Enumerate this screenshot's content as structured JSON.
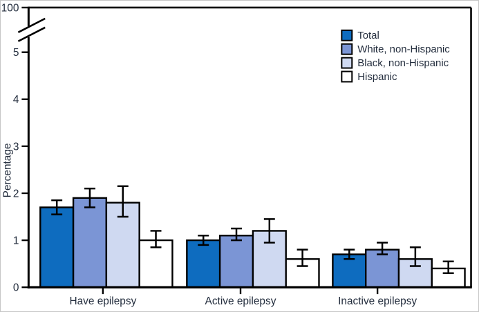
{
  "figure": {
    "background": "#ffffff",
    "frame_color": "#c6c6c6",
    "text_color": "#242e3e",
    "axis_color": "#000000"
  },
  "chart_data": {
    "type": "bar",
    "title": "",
    "xlabel": "",
    "ylabel": "Percentage",
    "ylim": [
      0,
      5
    ],
    "grid": false,
    "legend_position": "top-right",
    "error_bars": true,
    "y_ticks": [
      "0",
      "1",
      "2",
      "3",
      "4",
      "5"
    ],
    "y_axis_break": {
      "enabled": true,
      "top_tick_label": "100"
    },
    "categories": [
      "Have epilepsy",
      "Active epilepsy",
      "Inactive epilepsy"
    ],
    "series": [
      {
        "name": "Total",
        "color": "#0e6cbf",
        "values": [
          1.7,
          1.0,
          0.7
        ],
        "ci_low": [
          1.55,
          0.9,
          0.6
        ],
        "ci_high": [
          1.85,
          1.1,
          0.8
        ]
      },
      {
        "name": "White, non-Hispanic",
        "color": "#7b95d5",
        "values": [
          1.9,
          1.1,
          0.8
        ],
        "ci_low": [
          1.7,
          1.0,
          0.7
        ],
        "ci_high": [
          2.1,
          1.25,
          0.95
        ]
      },
      {
        "name": "Black, non-Hispanic",
        "color": "#cfd9f1",
        "values": [
          1.8,
          1.2,
          0.6
        ],
        "ci_low": [
          1.5,
          0.95,
          0.45
        ],
        "ci_high": [
          2.15,
          1.45,
          0.85
        ]
      },
      {
        "name": "Hispanic",
        "color": "#ffffff",
        "values": [
          1.0,
          0.6,
          0.4
        ],
        "ci_low": [
          0.85,
          0.45,
          0.3
        ],
        "ci_high": [
          1.2,
          0.8,
          0.55
        ]
      }
    ]
  }
}
